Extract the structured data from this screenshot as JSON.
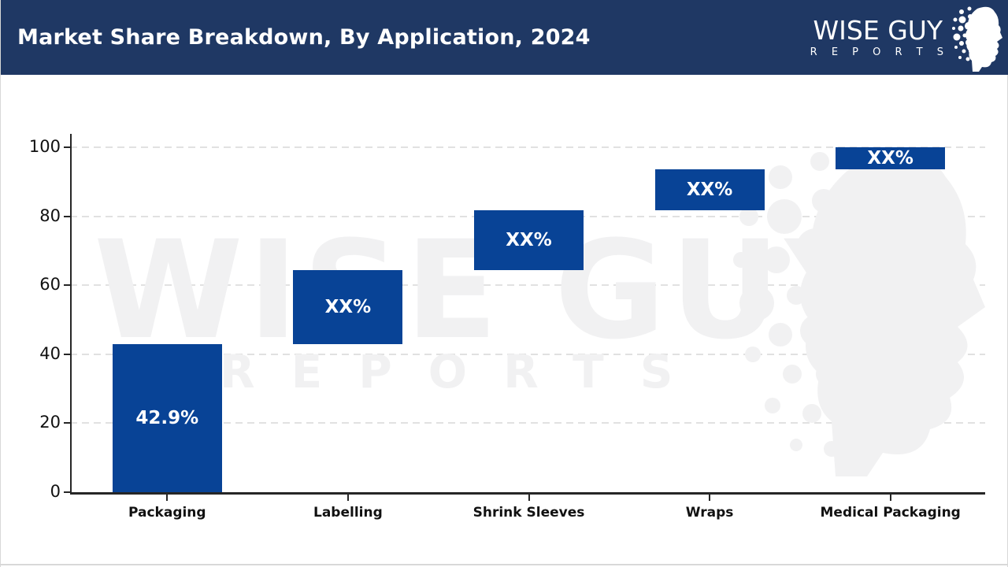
{
  "header": {
    "title": "Market Share Breakdown, By Application, 2024",
    "bg_color": "#1f3864",
    "logo": {
      "line1": "WISE GUY",
      "line2": "R E P O R T S"
    }
  },
  "watermark": {
    "line1": "WISE GUY",
    "line2": "REPORTS"
  },
  "chart_data": {
    "type": "bar",
    "subtype": "waterfall",
    "title": "Market Share Breakdown, By Application, 2024",
    "xlabel": "",
    "ylabel": "",
    "categories": [
      "Packaging",
      "Labelling",
      "Shrink Sleeves",
      "Wraps",
      "Medical Packaging"
    ],
    "segments": [
      {
        "category": "Packaging",
        "start": 0,
        "end": 42.9,
        "label": "42.9%"
      },
      {
        "category": "Labelling",
        "start": 42.9,
        "end": 64.4,
        "label": "XX%"
      },
      {
        "category": "Shrink Sleeves",
        "start": 64.4,
        "end": 81.7,
        "label": "XX%"
      },
      {
        "category": "Wraps",
        "start": 81.7,
        "end": 93.6,
        "label": "XX%"
      },
      {
        "category": "Medical Packaging",
        "start": 93.6,
        "end": 100,
        "label": "XX%"
      }
    ],
    "yticks": [
      0,
      20,
      40,
      60,
      80,
      100
    ],
    "ylim": [
      0,
      105
    ],
    "grid": "horizontal-dashed",
    "legend": "none",
    "bar_color": "#084396",
    "bar_label_color": "#ffffff",
    "axis_color": "#262626",
    "gridline_color": "#e1e1e1"
  }
}
